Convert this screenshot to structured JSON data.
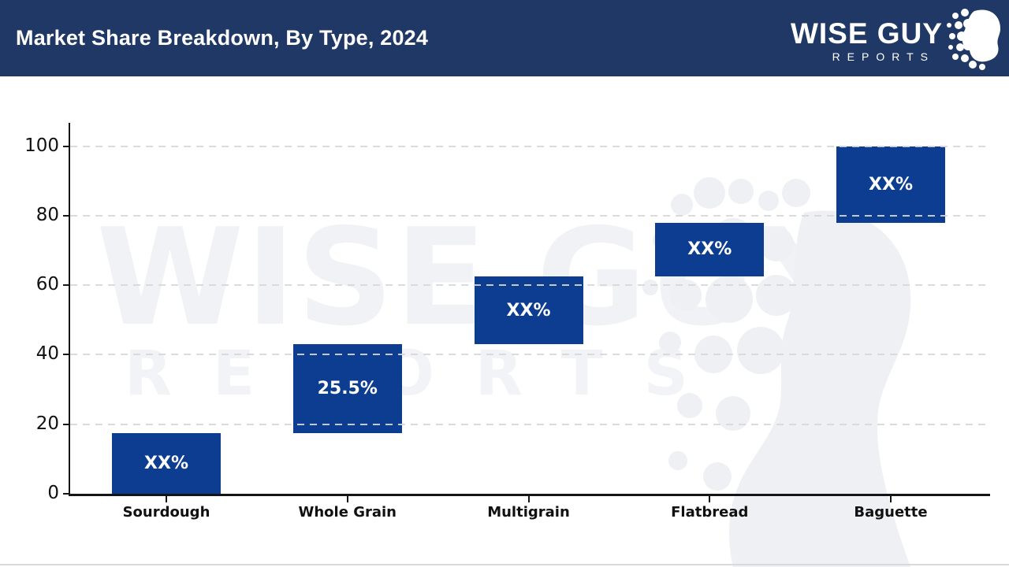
{
  "header": {
    "title": "Market Share Breakdown, By Type, 2024",
    "logo": {
      "line1": "WISE GUY",
      "line2": "REPORTS"
    },
    "bg_color": "#1f3866"
  },
  "watermark": {
    "line1": "WISE GUY",
    "line2": "REPORTS"
  },
  "chart_data": {
    "type": "bar",
    "subtype": "waterfall",
    "title": "Market Share Breakdown, By Type, 2024",
    "categories": [
      "Sourdough",
      "Whole Grain",
      "Multigrain",
      "Flatbread",
      "Baguette"
    ],
    "segments": [
      {
        "category": "Sourdough",
        "start": 0,
        "end": 17.5,
        "value_label": "XX%"
      },
      {
        "category": "Whole Grain",
        "start": 17.5,
        "end": 43,
        "value_label": "25.5%"
      },
      {
        "category": "Multigrain",
        "start": 43,
        "end": 62.5,
        "value_label": "XX%"
      },
      {
        "category": "Flatbread",
        "start": 62.5,
        "end": 78,
        "value_label": "XX%"
      },
      {
        "category": "Baguette",
        "start": 78,
        "end": 100,
        "value_label": "XX%"
      }
    ],
    "yticks": [
      0,
      20,
      40,
      60,
      80,
      100
    ],
    "ylim": [
      0,
      106
    ],
    "xlabel": "",
    "ylabel": "",
    "bar_color": "#0c3d91",
    "grid": "horizontal dashed, drawn over bars",
    "legend": "none"
  }
}
